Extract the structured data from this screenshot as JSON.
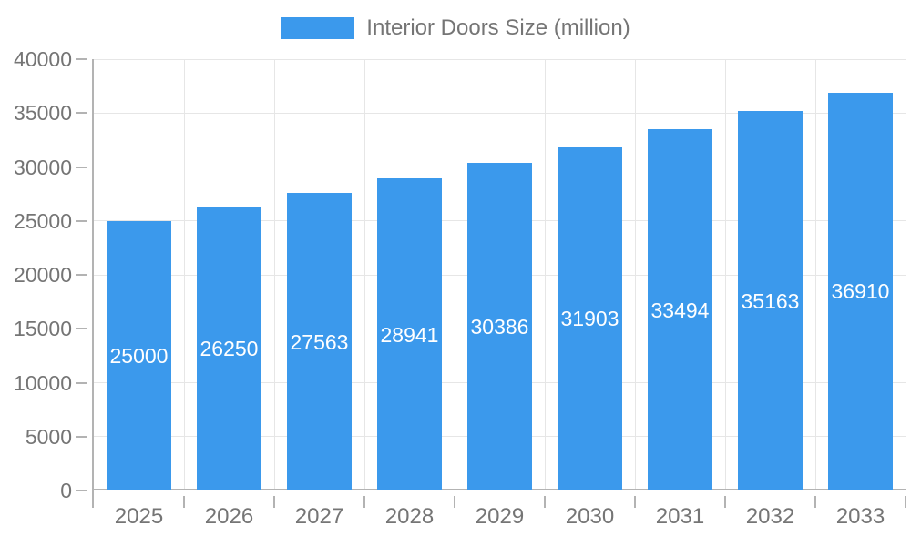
{
  "legend": {
    "label": "Interior Doors Size (million)",
    "swatch_color": "#3b99ec"
  },
  "chart_data": {
    "type": "bar",
    "title": "Interior Doors Size (million)",
    "categories": [
      "2025",
      "2026",
      "2027",
      "2028",
      "2029",
      "2030",
      "2031",
      "2032",
      "2033"
    ],
    "series": [
      {
        "name": "Interior Doors Size (million)",
        "values": [
          25000,
          26250,
          27563,
          28941,
          30386,
          31903,
          33494,
          35163,
          36910
        ]
      }
    ],
    "xlabel": "",
    "ylabel": "",
    "ylim": [
      0,
      40000
    ],
    "y_ticks": [
      0,
      5000,
      10000,
      15000,
      20000,
      25000,
      30000,
      35000,
      40000
    ],
    "grid": true,
    "legend_position": "top",
    "value_labels_position": "inside-center",
    "colors": {
      "bar": "#3b99ec",
      "grid": "#e6e6e6",
      "axis": "#b3b3b3",
      "axis_text": "#757575",
      "value_label_text": "#ffffff",
      "background": "#ffffff"
    }
  }
}
